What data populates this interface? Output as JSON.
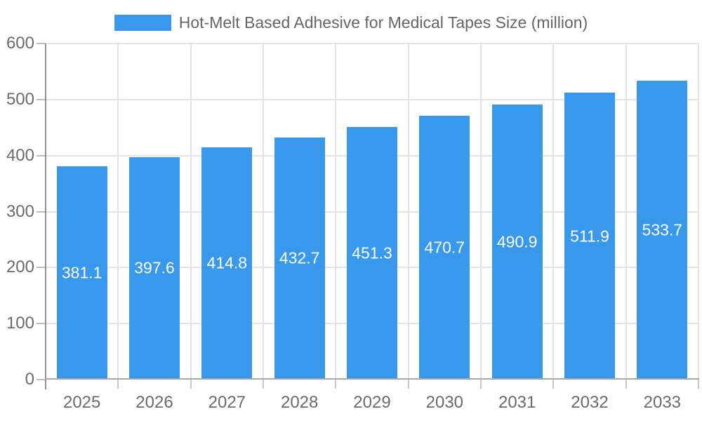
{
  "chart_data": {
    "type": "bar",
    "title": "Hot-Melt Based Adhesive for Medical Tapes Size (million)",
    "legend": {
      "position": "top-center",
      "entries": [
        {
          "label": "Hot-Melt Based Adhesive for Medical Tapes Size (million)",
          "color": "#3899ec"
        }
      ]
    },
    "categories": [
      "2025",
      "2026",
      "2027",
      "2028",
      "2029",
      "2030",
      "2031",
      "2032",
      "2033"
    ],
    "values": [
      381.1,
      397.6,
      414.8,
      432.7,
      451.3,
      470.7,
      490.9,
      511.9,
      533.7
    ],
    "data_labels": [
      "381.1",
      "397.6",
      "414.8",
      "432.7",
      "451.3",
      "470.7",
      "490.9",
      "511.9",
      "533.7"
    ],
    "xlabel": "",
    "ylabel": "",
    "ylim": [
      0,
      600
    ],
    "yticks": [
      0,
      100,
      200,
      300,
      400,
      500,
      600
    ],
    "grid": true,
    "bar_color": "#3899ec",
    "data_label_color": "#ffffff",
    "gridline_color": "#e4e4e4",
    "axis_text_color": "#6b6b6b",
    "title_color": "#666666"
  }
}
